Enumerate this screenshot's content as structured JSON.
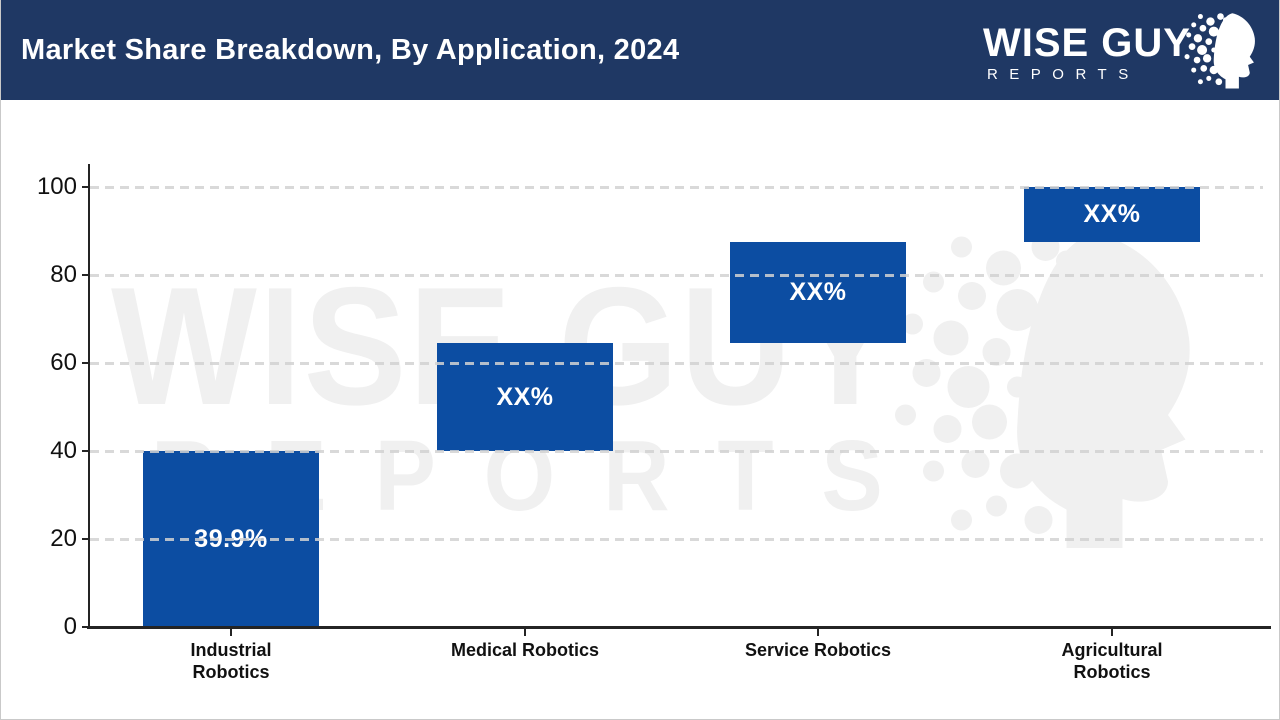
{
  "header": {
    "title": "Market Share Breakdown, By Application, 2024",
    "logo": {
      "line1": "WISE GUY",
      "line2": "REPORTS"
    }
  },
  "watermark": {
    "line1": "WISE GUY",
    "line2": "REPORTS"
  },
  "colors": {
    "header_bg": "#1f3864",
    "bar_blue": "#0c4da2",
    "grid": "#d2d2d2",
    "axis": "#242424",
    "watermark": "#f0f0f0",
    "value_label_text": "#ffffff"
  },
  "chart_data": {
    "type": "bar",
    "subtype": "stacked-waterfall",
    "title": "Market Share Breakdown, By Application, 2024",
    "categories": [
      {
        "name": "Industrial Robotics",
        "lines": [
          "Industrial",
          "Robotics"
        ]
      },
      {
        "name": "Medical Robotics",
        "lines": [
          "Medical Robotics"
        ]
      },
      {
        "name": "Service Robotics",
        "lines": [
          "Service Robotics"
        ]
      },
      {
        "name": "Agricultural Robotics",
        "lines": [
          "Agricultural",
          "Robotics"
        ]
      }
    ],
    "bars": [
      {
        "category": "Industrial Robotics",
        "start": 0,
        "end": 39.9,
        "value": 39.9,
        "value_label": "39.9%"
      },
      {
        "category": "Medical Robotics",
        "start": 39.9,
        "end": 64.5,
        "value": 24.6,
        "value_label": "XX%"
      },
      {
        "category": "Service Robotics",
        "start": 64.5,
        "end": 87.5,
        "value": 23.0,
        "value_label": "XX%"
      },
      {
        "category": "Agricultural Robotics",
        "start": 87.5,
        "end": 100,
        "value": 12.5,
        "value_label": "XX%"
      }
    ],
    "xlabel": "",
    "ylabel": "",
    "yticks": [
      0,
      20,
      40,
      60,
      80,
      100
    ],
    "ylim": [
      0,
      105
    ],
    "grid": {
      "show": true,
      "style": "dashed",
      "on_top_of_bars": true
    },
    "legend": "none",
    "value_unit": "%"
  }
}
